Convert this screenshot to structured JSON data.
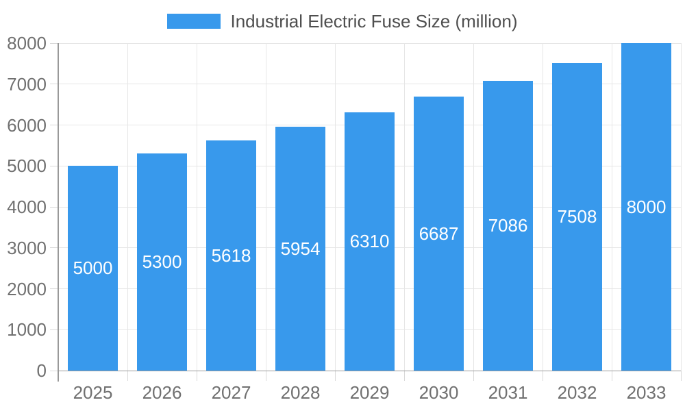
{
  "chart_data": {
    "type": "bar",
    "title": "Industrial Electric Fuse Size (million)",
    "legend_position": "top-center",
    "categories": [
      "2025",
      "2026",
      "2027",
      "2028",
      "2029",
      "2030",
      "2031",
      "2032",
      "2033"
    ],
    "series": [
      {
        "name": "Industrial Electric Fuse Size (million)",
        "values": [
          5000,
          5300,
          5618,
          5954,
          6310,
          6687,
          7086,
          7508,
          8000
        ]
      }
    ],
    "bar_value_labels": [
      "5000",
      "5300",
      "5618",
      "5954",
      "6310",
      "6687",
      "7086",
      "7508",
      "8000"
    ],
    "xlabel": "",
    "ylabel": "",
    "ylim": [
      0,
      8000
    ],
    "yticks": [
      0,
      1000,
      2000,
      3000,
      4000,
      5000,
      6000,
      7000,
      8000
    ],
    "grid": true,
    "colors": {
      "bar": "#3899ec",
      "bar_label": "#ffffff",
      "axis_line": "#999999",
      "grid_line": "#e6e6e6",
      "tick_line": "#d9d9d9",
      "tick_label": "#707070",
      "legend_text": "#4f4f4f",
      "background": "#ffffff"
    }
  }
}
